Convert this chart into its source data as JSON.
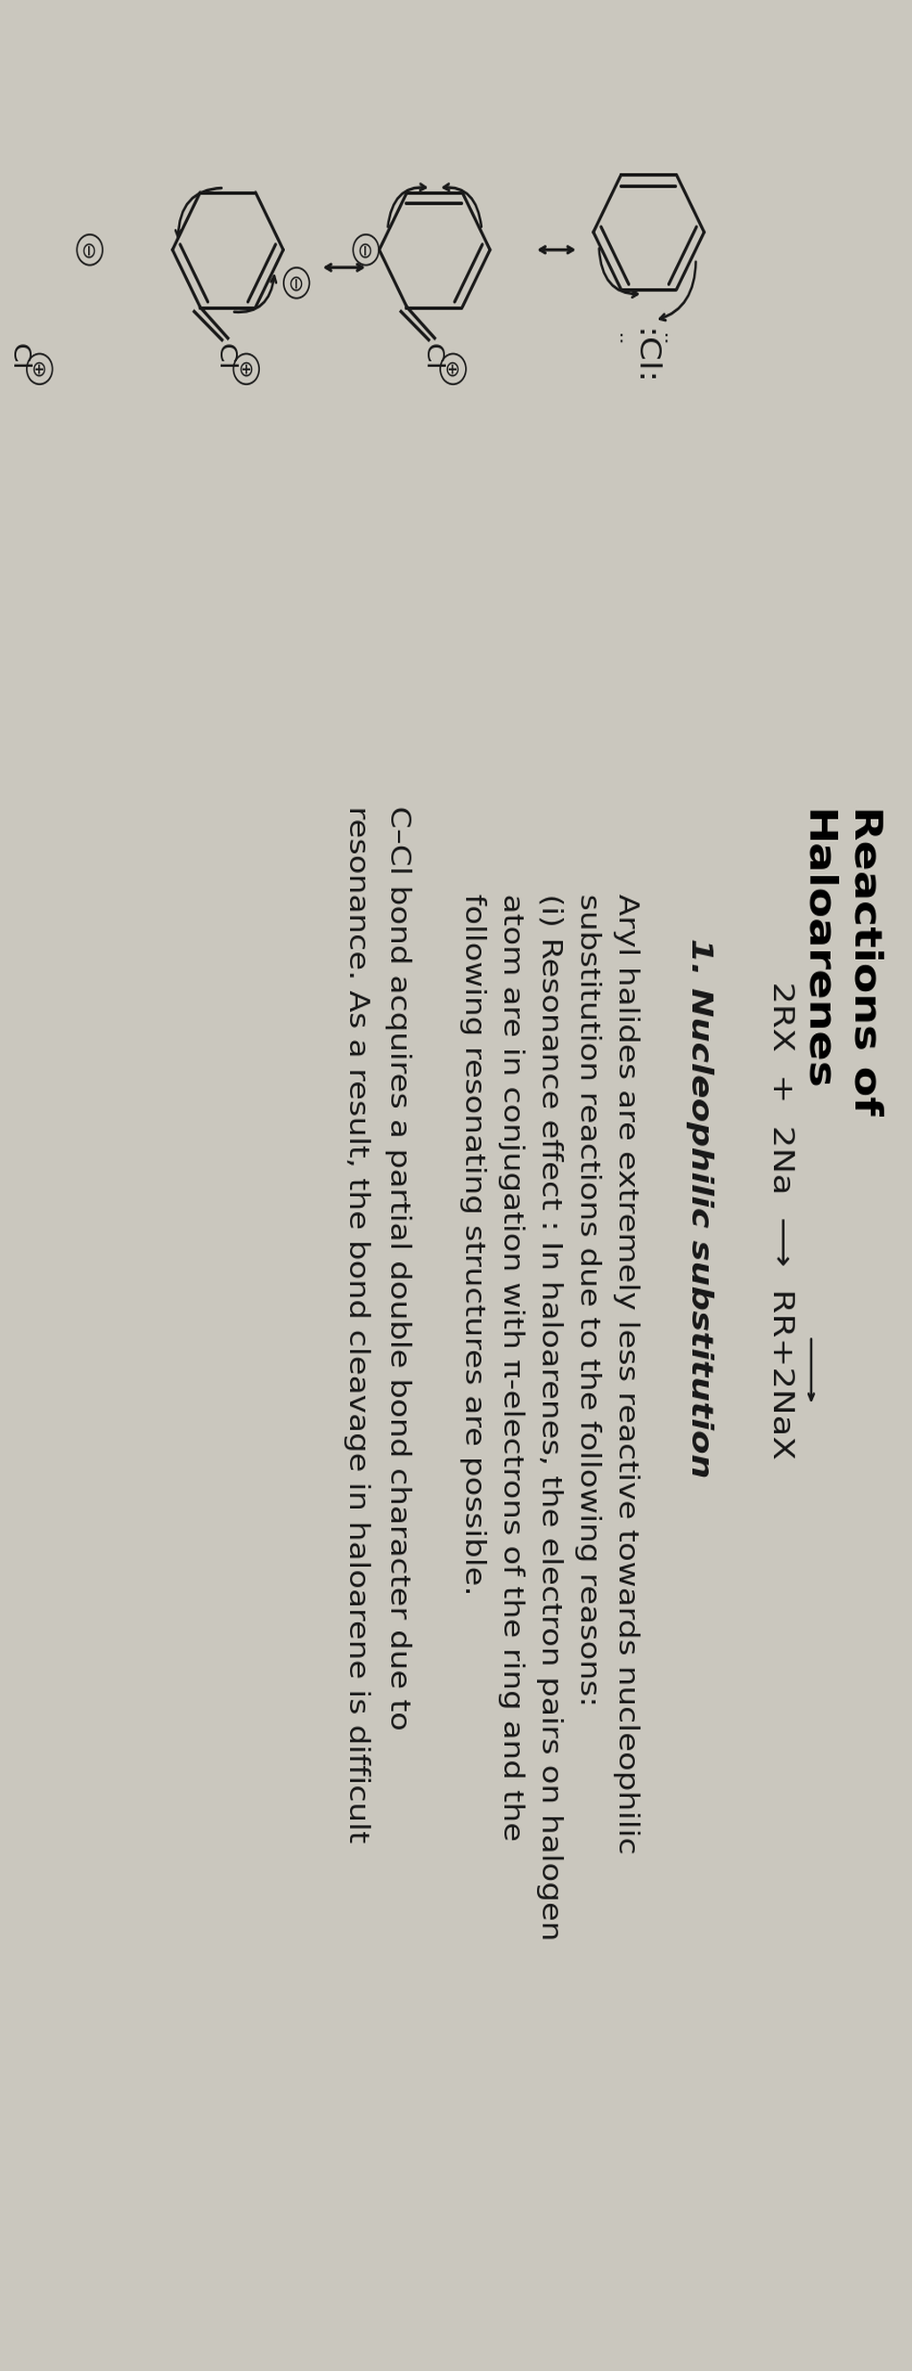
{
  "background_color": "#cac7be",
  "title": "Reactions of\nHaloarenes",
  "equation": "2RX  +  2Na  ⟶  RR+2NaX",
  "section1_title": "1. Nucleophilic substitution",
  "text_line1": "Aryl halides are extremely less reactive towards nucleophilic",
  "text_line2": "substitution reactions due to the following reasons:",
  "text_line3": "(i) Resonance effect : In haloarenes, the electron pairs on halogen",
  "text_line4": "atom are in conjugation with π-electrons of the ring and the",
  "text_line5": "following resonating structures are possible.",
  "text_line6": "C–Cl bond acquires a partial double bond character due to",
  "text_line7": "resonance. As a result, the bond cleavage in haloarene is difficult",
  "font_size_title": 28,
  "font_size_equation": 22,
  "font_size_section": 22,
  "font_size_text": 20,
  "text_color": "#1a1a1a",
  "title_color": "#000000"
}
